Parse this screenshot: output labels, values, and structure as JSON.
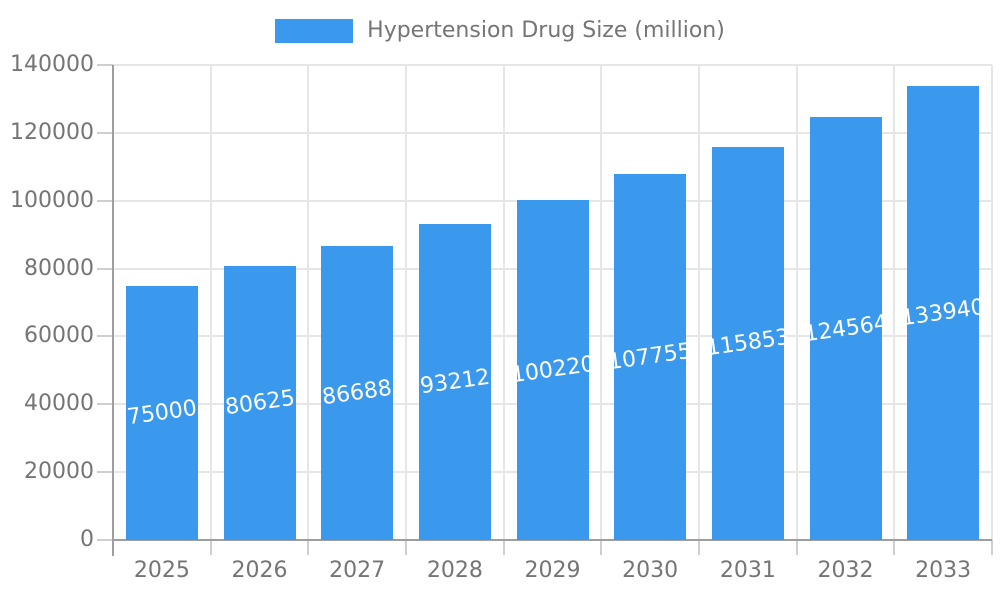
{
  "legend": {
    "label": "Hypertension Drug Size (million)"
  },
  "colors": {
    "bar": "#3A99EC",
    "grid": "#E6E6E6",
    "axis": "#9E9E9E",
    "tick": "#CFCFCF",
    "text": "#757575",
    "value_label": "#FFFFFF",
    "background": "#FFFFFF"
  },
  "chart_data": {
    "type": "bar",
    "title": "Hypertension Drug Size (million)",
    "series_name": "Hypertension Drug Size (million)",
    "categories": [
      "2025",
      "2026",
      "2027",
      "2028",
      "2029",
      "2030",
      "2031",
      "2032",
      "2033"
    ],
    "values": [
      75000,
      80625,
      86688,
      93212,
      100220,
      107755,
      115853,
      124564,
      133940
    ],
    "xlabel": "",
    "ylabel": "",
    "ylim": [
      0,
      140000
    ],
    "yticks": [
      0,
      20000,
      40000,
      60000,
      80000,
      100000,
      120000,
      140000
    ],
    "grid": true,
    "legend_position": "top",
    "value_labels_visible": true,
    "value_label_rotation_deg": -8
  }
}
